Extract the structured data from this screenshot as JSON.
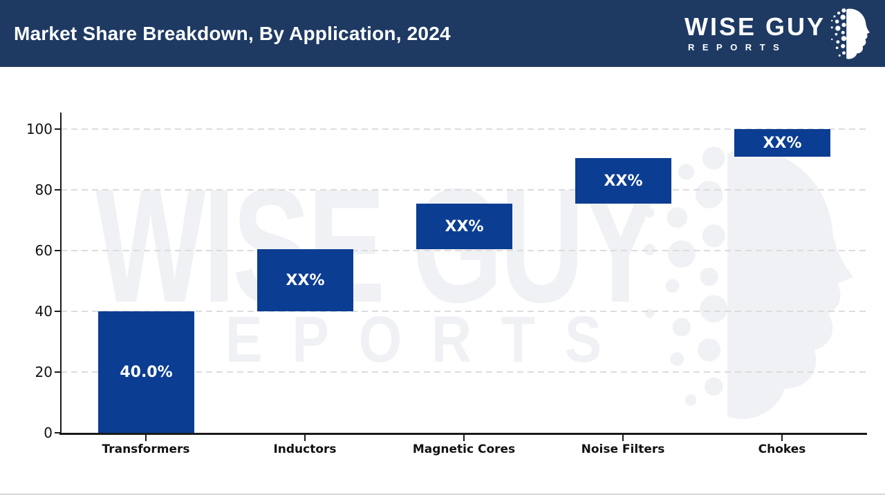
{
  "header": {
    "title": "Market Share Breakdown, By Application, 2024",
    "background": "#1e3a63",
    "brand": {
      "line1": "WISE GUY",
      "line2": "REPORTS"
    }
  },
  "watermark": {
    "line1": "WISE GUY",
    "line2": "REPORTS"
  },
  "chart_data": {
    "type": "bar",
    "subtype": "floating-waterfall",
    "title": "Market Share Breakdown, By Application, 2024",
    "categories": [
      "Transformers",
      "Inductors",
      "Magnetic Cores",
      "Noise Filters",
      "Chokes"
    ],
    "segments": [
      [
        0,
        40
      ],
      [
        40,
        60.5
      ],
      [
        60.5,
        75.5
      ],
      [
        75.5,
        90.5
      ],
      [
        91,
        100
      ]
    ],
    "bar_labels": [
      "40.0%",
      "XX%",
      "XX%",
      "XX%",
      "XX%"
    ],
    "yticks": [
      0,
      20,
      40,
      60,
      80,
      100
    ],
    "ylim": [
      0,
      105
    ],
    "xlabel": "",
    "ylabel": "",
    "grid": "dashed-horizontal",
    "legend": "none",
    "bar_color": "#0b3d92",
    "bar_label_color": "#ffffff",
    "axis_color": "#1a1a1a"
  }
}
